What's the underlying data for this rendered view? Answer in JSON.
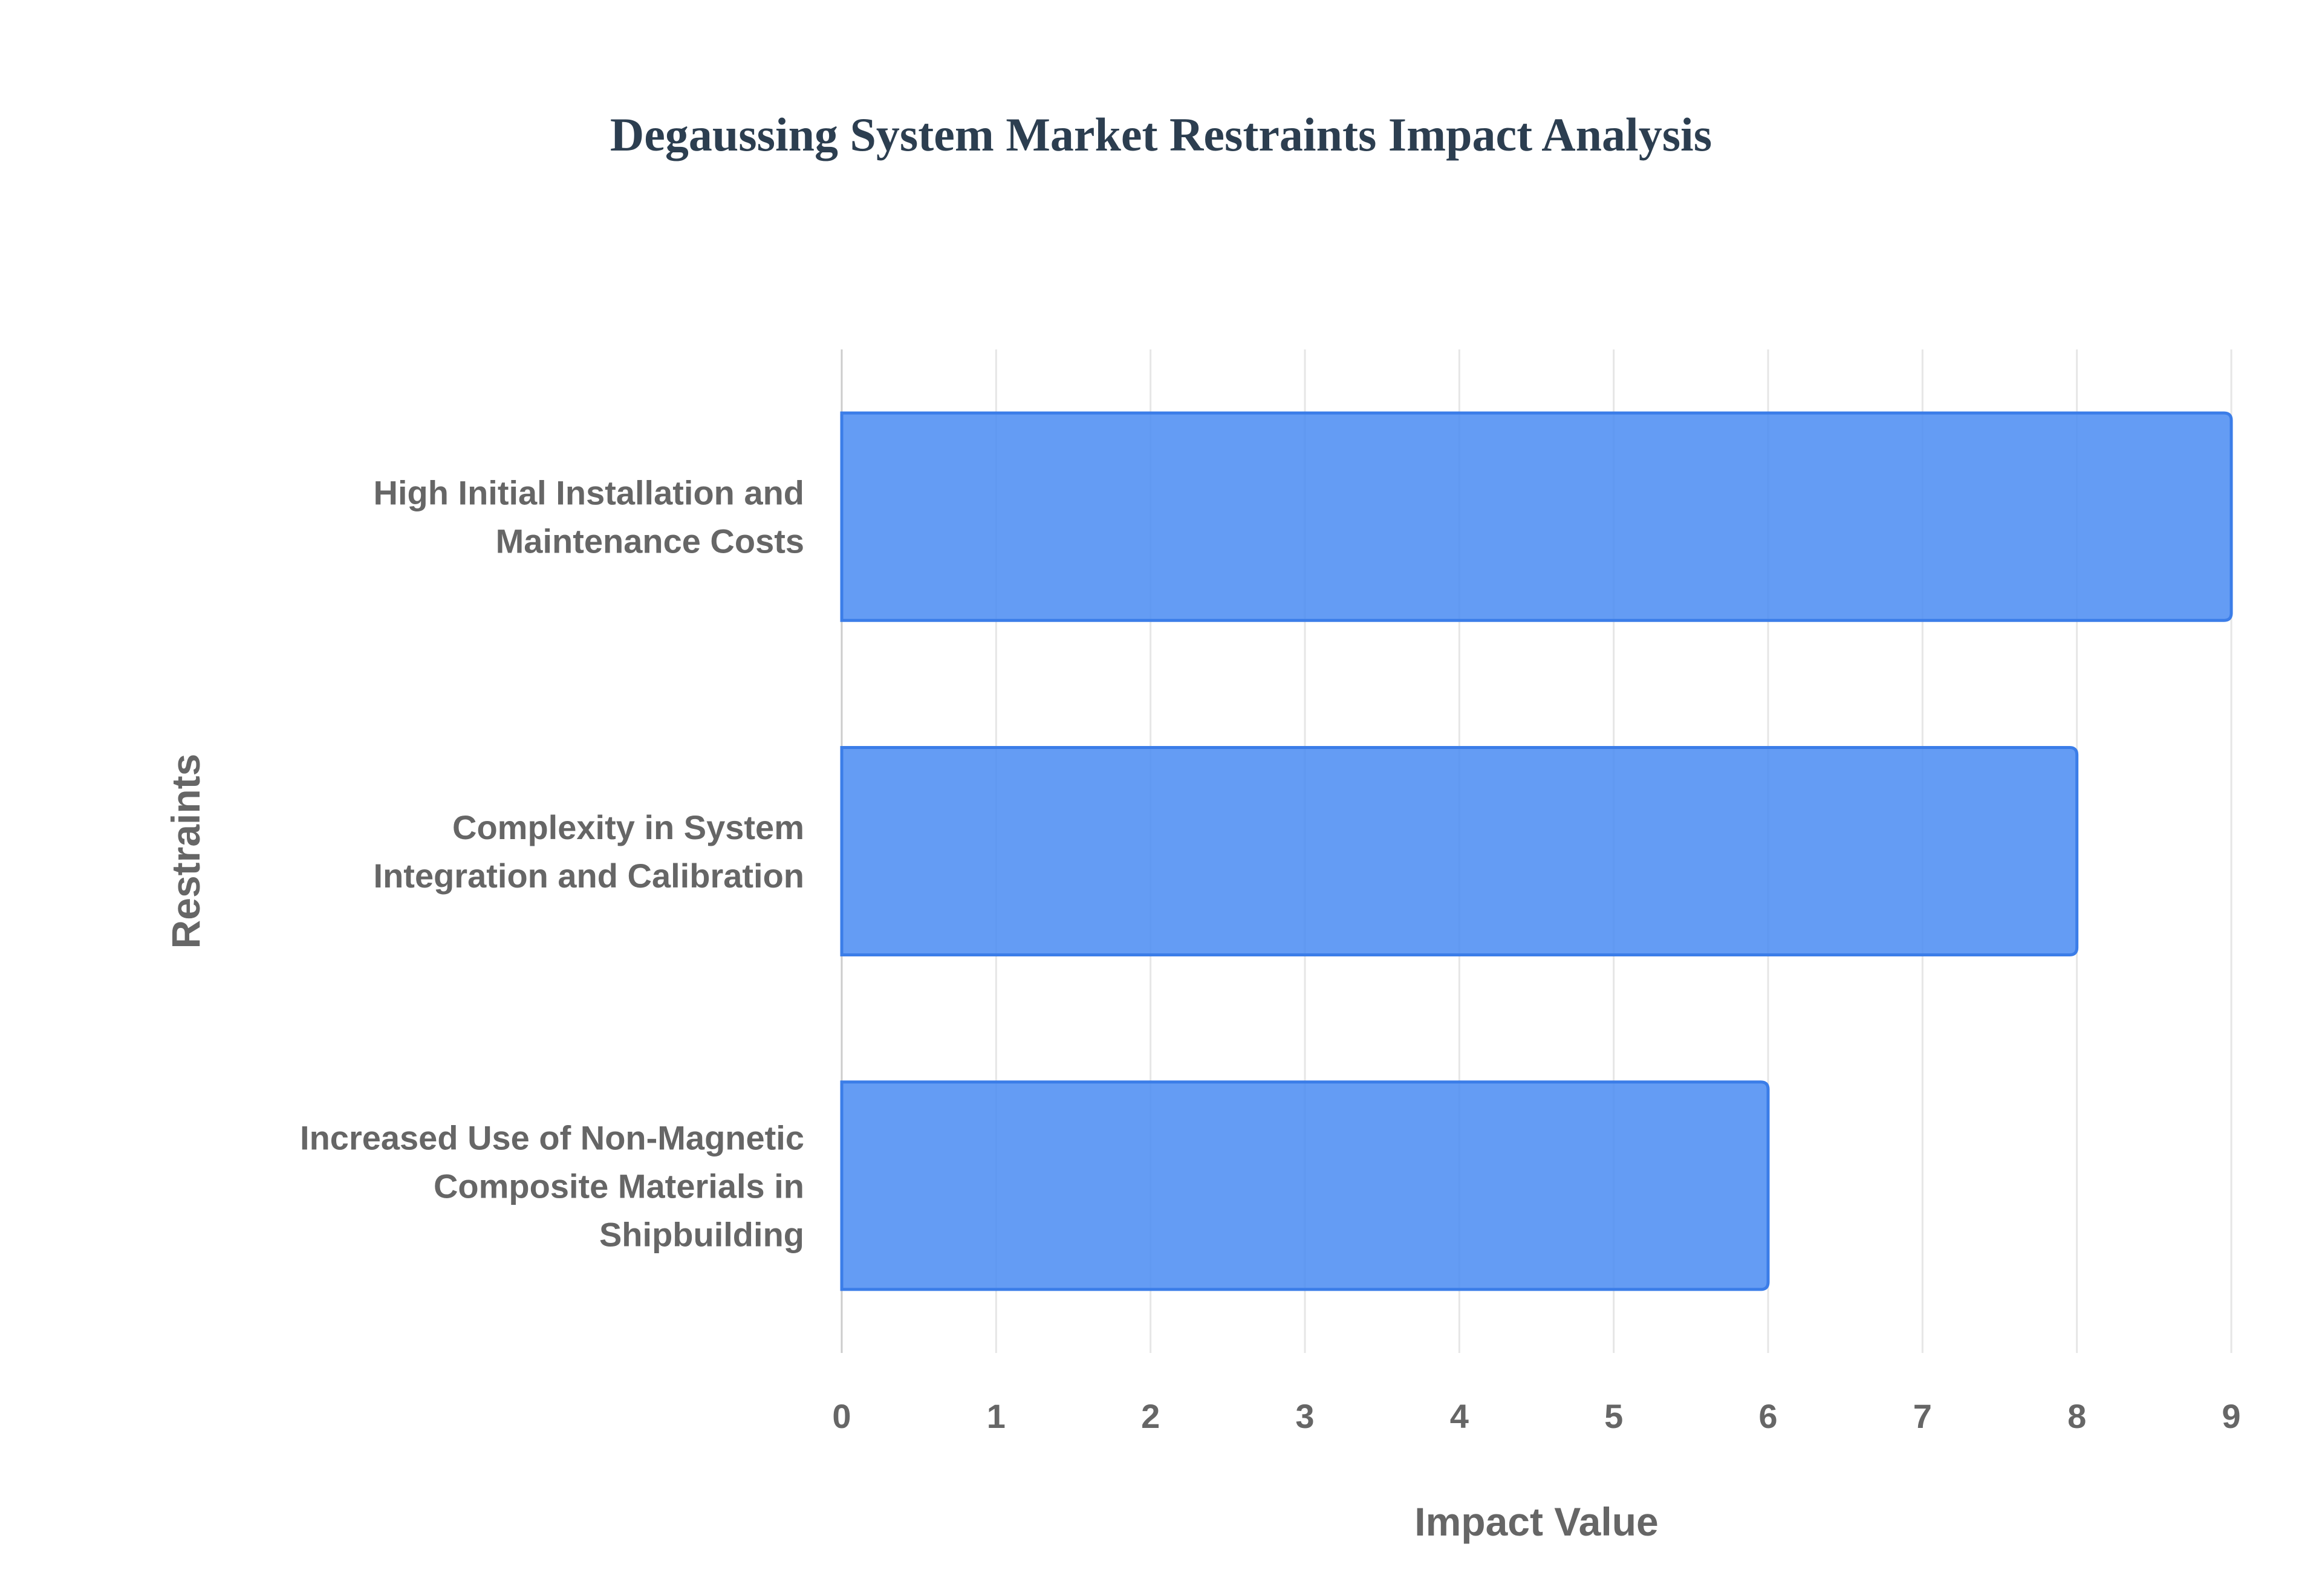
{
  "chart_data": {
    "type": "bar",
    "orientation": "horizontal",
    "title": "Degaussing System Market Restraints Impact Analysis",
    "xlabel": "Impact Value",
    "ylabel": "Restraints",
    "categories": [
      [
        "High Initial Installation and",
        "Maintenance Costs"
      ],
      [
        "Complexity in System",
        "Integration and Calibration"
      ],
      [
        "Increased Use of Non-Magnetic",
        "Composite Materials in",
        "Shipbuilding"
      ]
    ],
    "values": [
      9,
      8,
      6
    ],
    "xlim": [
      0,
      9
    ],
    "xticks": [
      "0",
      "1",
      "2",
      "3",
      "4",
      "5",
      "6",
      "7",
      "8",
      "9"
    ],
    "grid": true,
    "legend": "none",
    "colors": {
      "bar_fill": "#4f8ef2",
      "bar_edge": "#3b7de8",
      "title": "#2c3e50",
      "text": "#666666",
      "grid": "#e6e6e6"
    }
  }
}
